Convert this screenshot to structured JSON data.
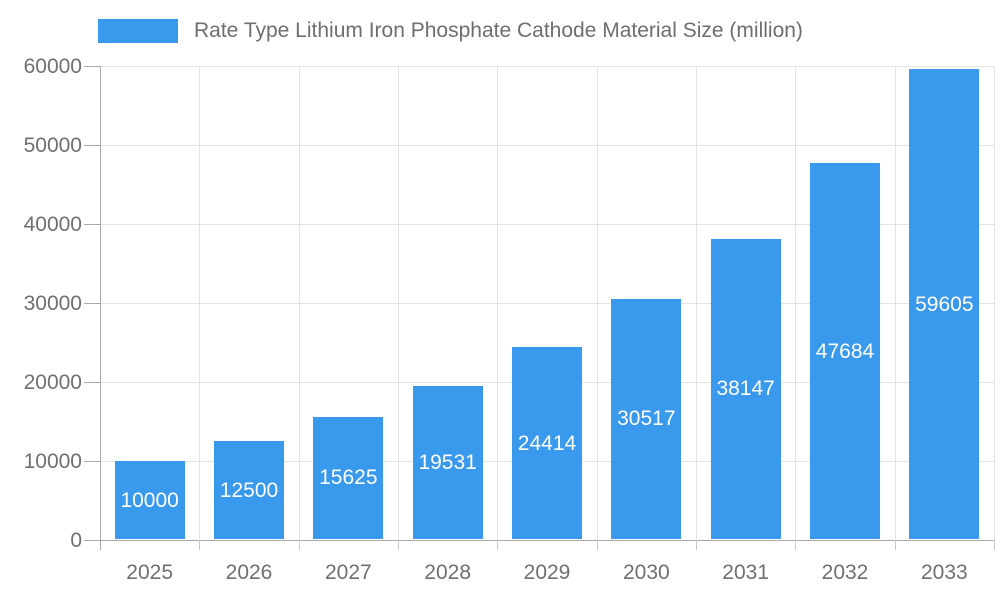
{
  "legend": {
    "label": "Rate Type Lithium Iron Phosphate Cathode Material Size (million)"
  },
  "chart_data": {
    "type": "bar",
    "title": "Rate Type Lithium Iron Phosphate Cathode Material Size (million)",
    "categories": [
      "2025",
      "2026",
      "2027",
      "2028",
      "2029",
      "2030",
      "2031",
      "2032",
      "2033"
    ],
    "series": [
      {
        "name": "Rate Type Lithium Iron Phosphate Cathode Material Size (million)",
        "values": [
          10000,
          12500,
          15625,
          19531,
          24414,
          30517,
          38147,
          47684,
          59605
        ]
      }
    ],
    "xlabel": "",
    "ylabel": "",
    "ylim": [
      0,
      60000
    ],
    "yticks": [
      0,
      10000,
      20000,
      30000,
      40000,
      50000,
      60000
    ],
    "grid": true,
    "legend_position": "top-left",
    "value_labels": "inside-center"
  },
  "colors": {
    "bar": "#3999EC",
    "bar_label": "#FFFFFF",
    "grid": "#E3E3E3",
    "axis": "#A8A8A8",
    "tick": "#C9C9C9",
    "text": "#707070",
    "background": "#FFFFFF"
  }
}
